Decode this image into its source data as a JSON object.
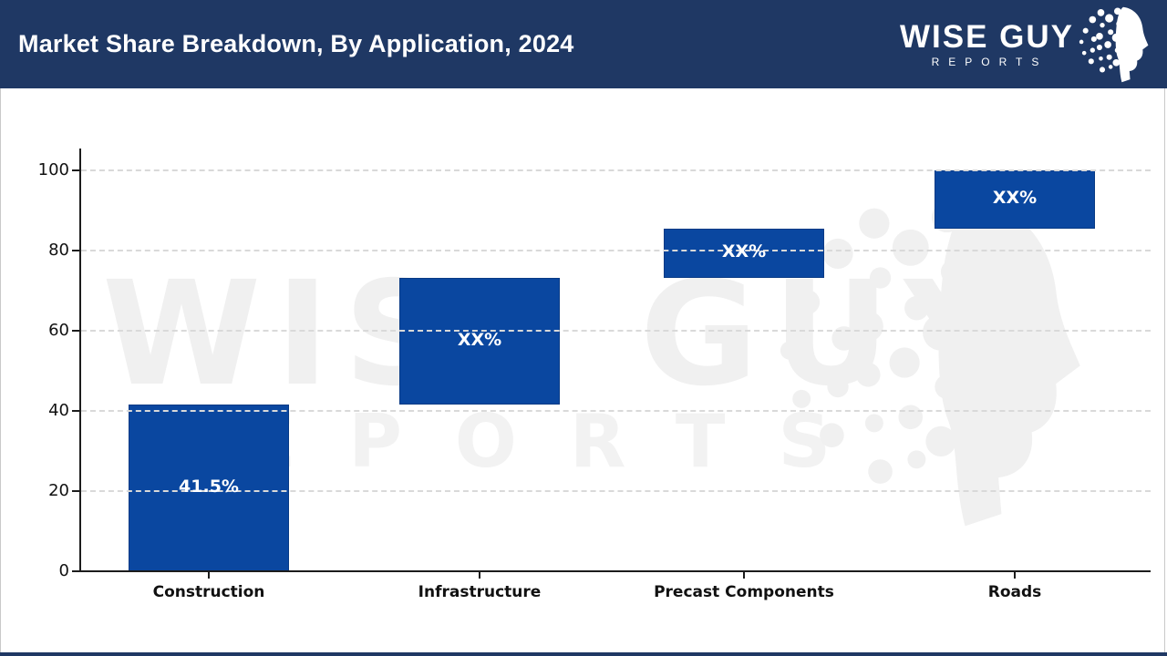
{
  "header": {
    "title": "Market Share Breakdown, By Application, 2024",
    "logo": {
      "line1": "WISE GUY",
      "line2": "REPORTS",
      "icon": "dotted-head-profile-icon"
    }
  },
  "watermark": {
    "line1": "WISE GUY",
    "line2": "REPORTS",
    "icon": "dotted-head-profile-watermark"
  },
  "colors": {
    "header_bg": "#1f3864",
    "footer_bg": "#1f3864",
    "bar": "#0a47a0",
    "bar_edge": "#083a85",
    "bar_label": "#ffffff",
    "gridline": "#d9d9d9",
    "axis": "#1c1c1c",
    "watermark": "#f0f0f0"
  },
  "chart_data": {
    "type": "bar",
    "subtype": "waterfall",
    "title": "Market Share Breakdown, By Application, 2024",
    "categories": [
      "Construction",
      "Infrastructure",
      "Precast Components",
      "Roads"
    ],
    "segments": [
      {
        "category": "Construction",
        "start": 0,
        "end": 41.5,
        "label": "41.5%"
      },
      {
        "category": "Infrastructure",
        "start": 41.5,
        "end": 73.2,
        "label": "XX%"
      },
      {
        "category": "Precast Components",
        "start": 73.2,
        "end": 85.5,
        "label": "XX%"
      },
      {
        "category": "Roads",
        "start": 85.5,
        "end": 100,
        "label": "XX%"
      }
    ],
    "xlabel": "",
    "ylabel": "",
    "ylim": [
      0,
      100
    ],
    "yticks": [
      0,
      20,
      40,
      60,
      80,
      100
    ],
    "grid": "dashed horizontal, drawn above bars",
    "legend": "none"
  }
}
